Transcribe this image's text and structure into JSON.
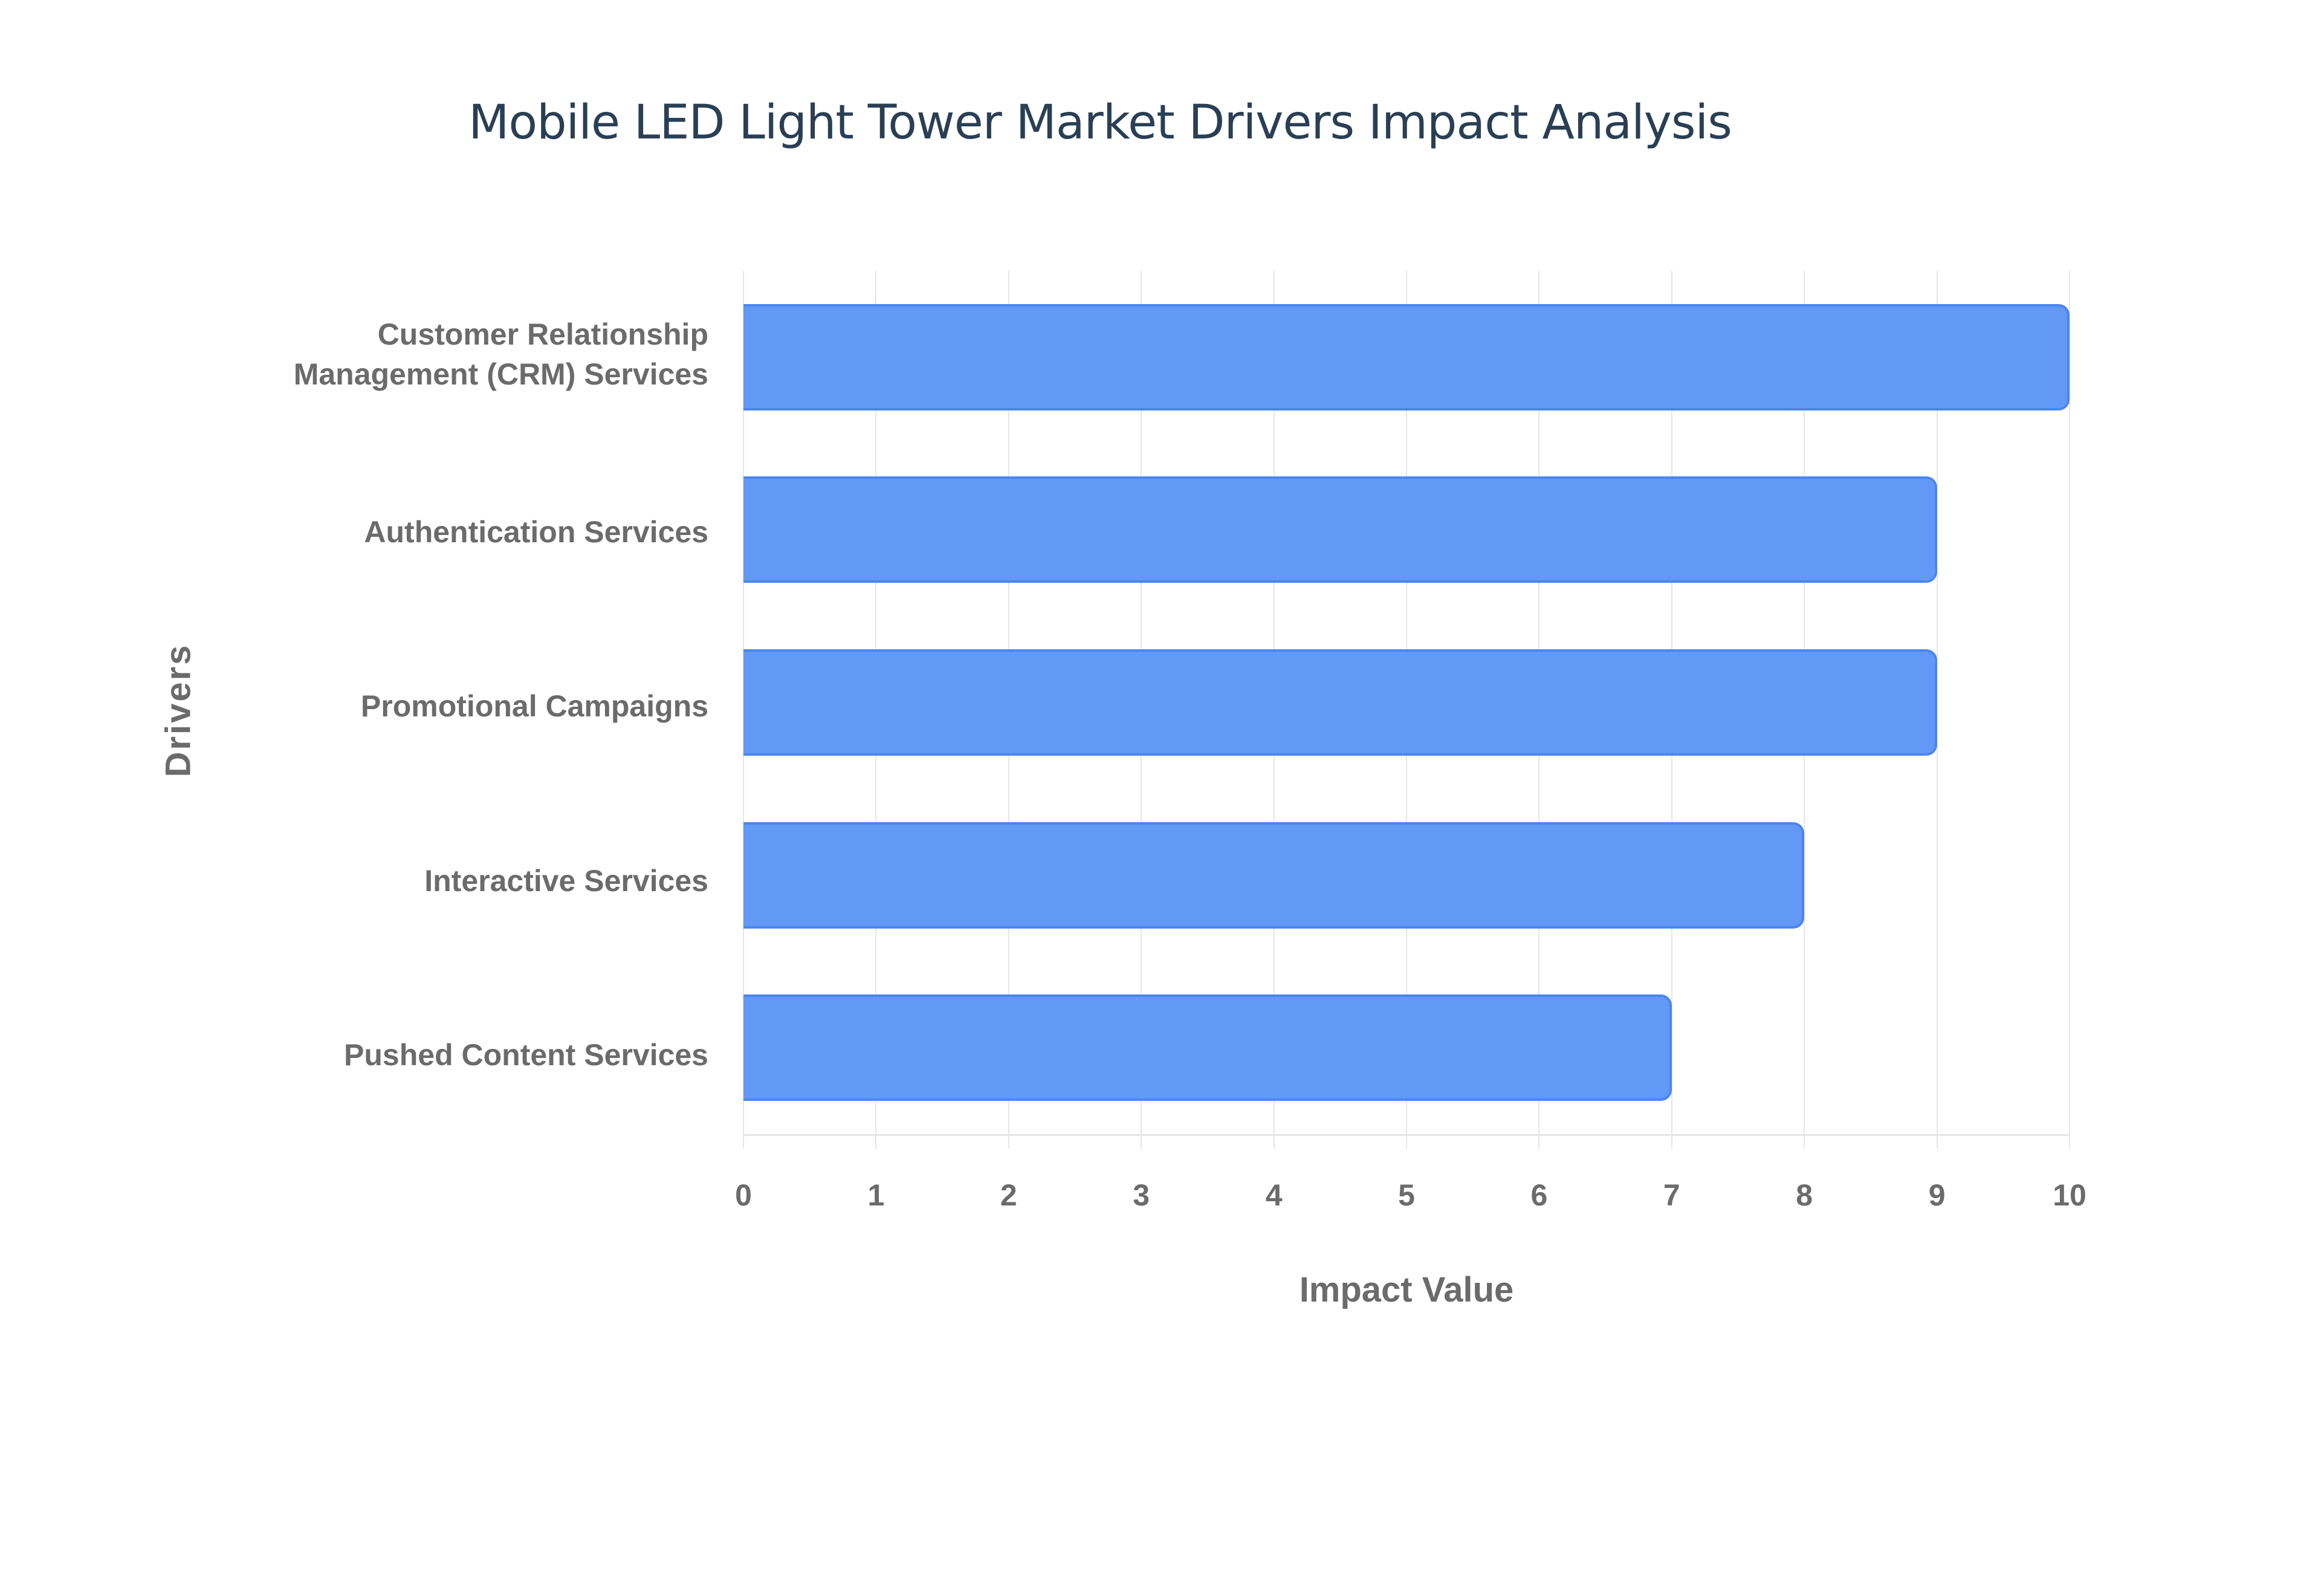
{
  "chart_data": {
    "type": "bar",
    "orientation": "horizontal",
    "title": "Mobile LED Light Tower Market Drivers Impact Analysis",
    "xlabel": "Impact Value",
    "ylabel": "Drivers",
    "categories": [
      "Customer Relationship Management (CRM) Services",
      "Authentication Services",
      "Promotional Campaigns",
      "Interactive Services",
      "Pushed Content Services"
    ],
    "values": [
      10,
      9,
      9,
      8,
      7
    ],
    "xlim": [
      0,
      10
    ],
    "xticks": [
      "0",
      "1",
      "2",
      "3",
      "4",
      "5",
      "6",
      "7",
      "8",
      "9",
      "10"
    ],
    "grid": true,
    "legend": null,
    "colors": {
      "bar_fill": "#6399f6",
      "bar_border": "#4a86f0",
      "title": "#2a3f54",
      "axis_text": "#6b6b6b",
      "grid": "#e6e6e6"
    }
  },
  "labels": {
    "title": "Mobile LED Light Tower Market Drivers Impact Analysis",
    "xaxis_title": "Impact Value",
    "yaxis_title": "Drivers",
    "cat0_line1": "Customer Relationship",
    "cat0_line2": "Management (CRM) Services",
    "cat1": "Authentication Services",
    "cat2": "Promotional Campaigns",
    "cat3": "Interactive Services",
    "cat4": "Pushed Content Services"
  }
}
